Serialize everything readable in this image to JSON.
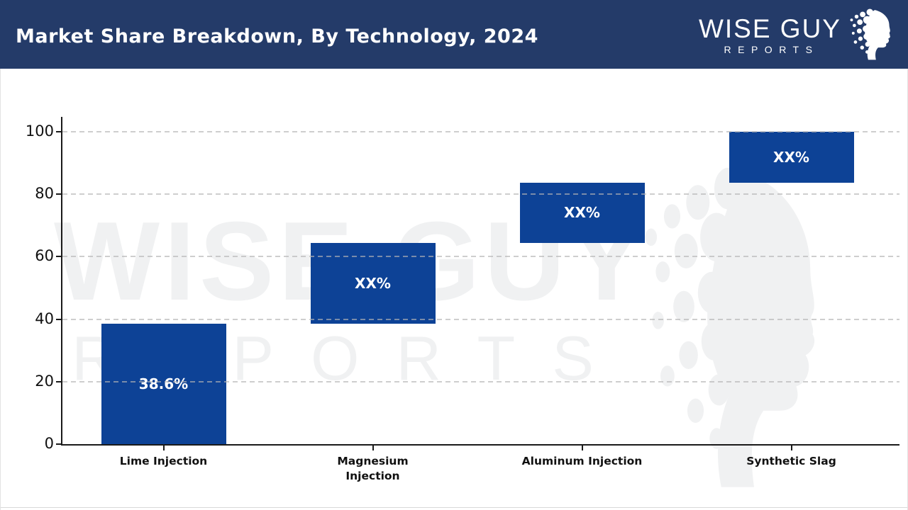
{
  "header": {
    "title": "Market Share Breakdown, By Technology, 2024",
    "logo": {
      "line1": "WISE GUY",
      "line2": "REPORTS"
    }
  },
  "watermark": {
    "line1": "WISE GUY",
    "line2": "REPORTS"
  },
  "chart_data": {
    "type": "bar",
    "subtype": "stacked-waterfall",
    "title": "Market Share Breakdown, By Technology, 2024",
    "categories": [
      "Lime Injection",
      "Magnesium Injection",
      "Aluminum Injection",
      "Synthetic Slag"
    ],
    "categories_display": [
      "Lime Injection",
      "Magnesium\nInjection",
      "Aluminum Injection",
      "Synthetic Slag"
    ],
    "segments": [
      {
        "category": "Lime Injection",
        "start": 0,
        "end": 38.6,
        "value": 38.6,
        "label": "38.6%"
      },
      {
        "category": "Magnesium Injection",
        "start": 38.6,
        "end": 64.5,
        "value": 25.9,
        "label": "XX%"
      },
      {
        "category": "Aluminum Injection",
        "start": 64.5,
        "end": 83.7,
        "value": 19.2,
        "label": "XX%"
      },
      {
        "category": "Synthetic Slag",
        "start": 83.7,
        "end": 100,
        "value": 16.3,
        "label": "XX%"
      }
    ],
    "ylim": [
      0,
      100
    ],
    "yticks": [
      0,
      20,
      40,
      60,
      80,
      100
    ],
    "grid": "horizontal-dashed",
    "legend": "none",
    "bar_color": "#0d4296",
    "bar_label_color": "#ffffff",
    "axis_color": "#1a1a1a",
    "header_color": "#243b69"
  }
}
